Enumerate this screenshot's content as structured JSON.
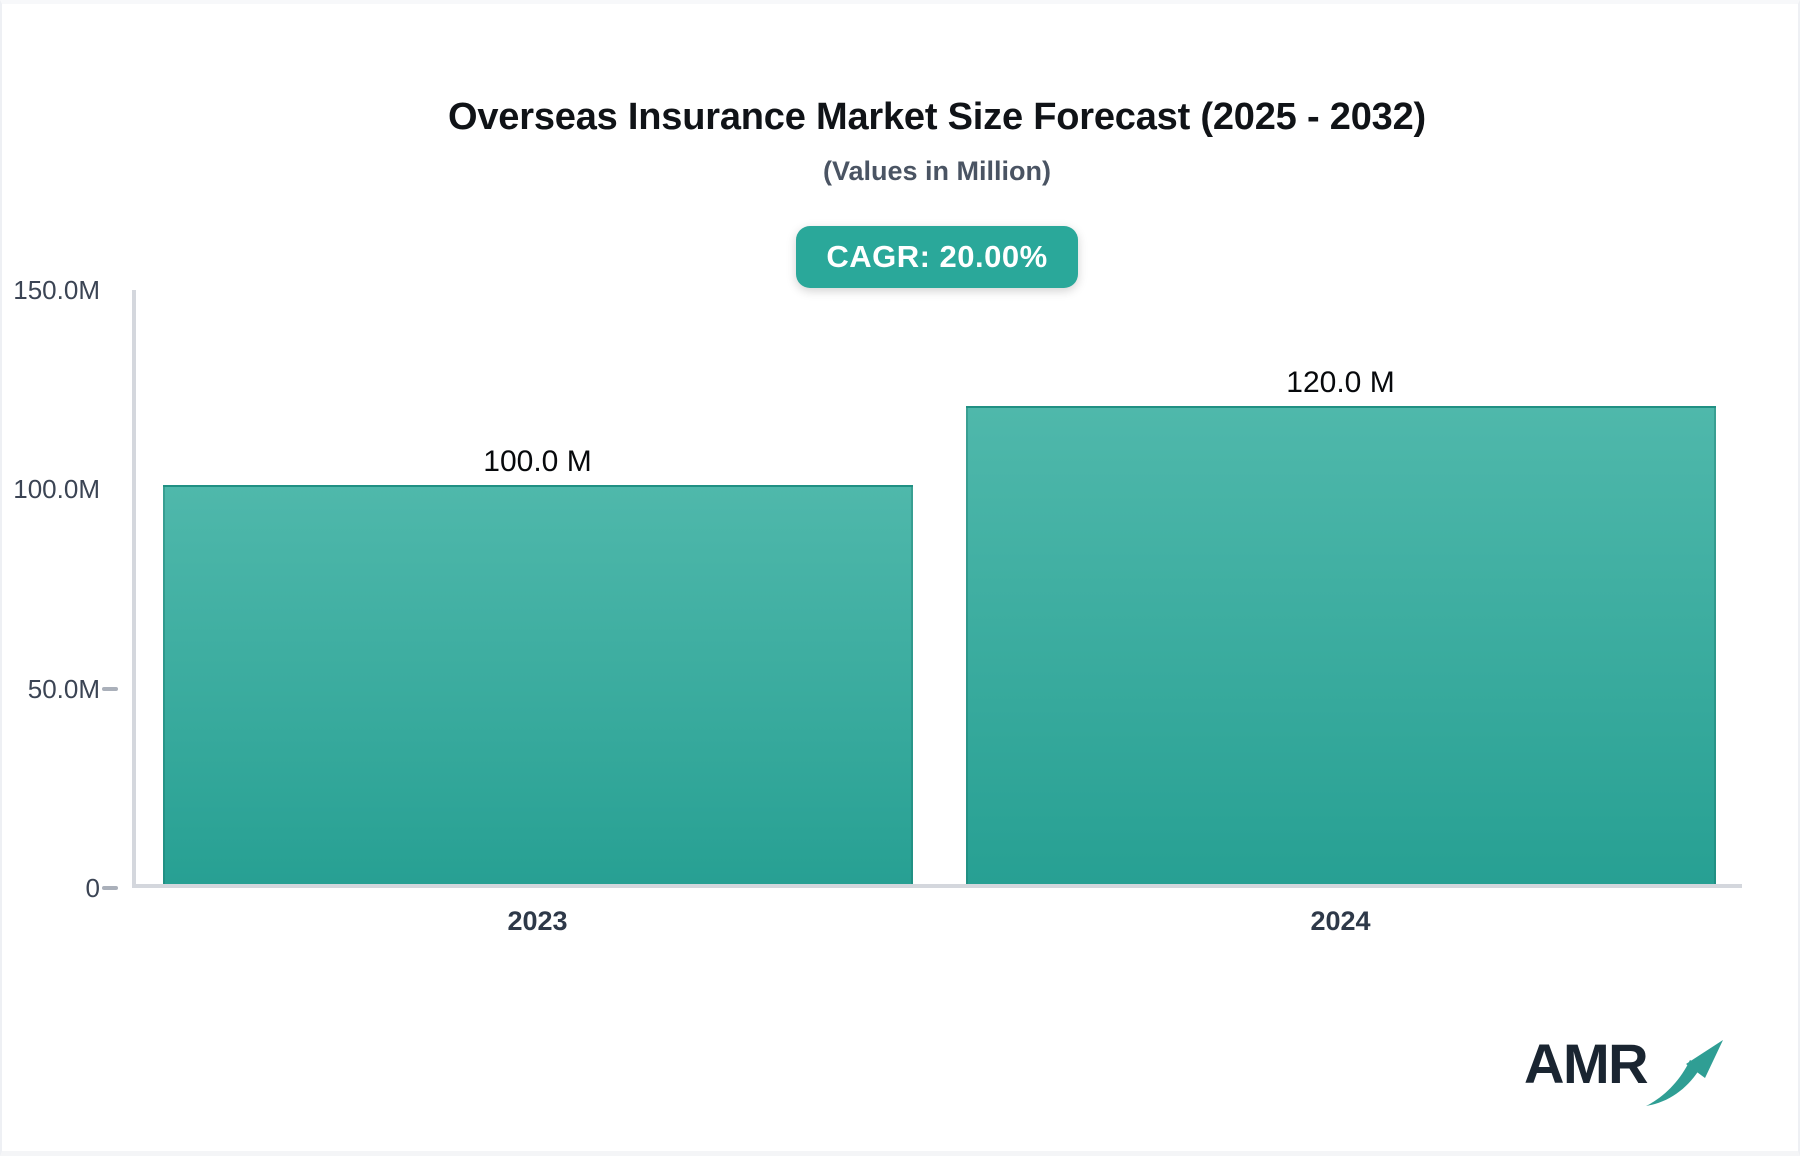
{
  "header": {
    "title": "Overseas Insurance Market Size Forecast (2025 - 2032)",
    "subtitle": "(Values in Million)",
    "cagr_badge": "CAGR: 20.00%"
  },
  "chart_data": {
    "type": "bar",
    "title": "Overseas Insurance Market Size Forecast (2025 - 2032)",
    "subtitle": "(Values in Million)",
    "cagr": "20.00%",
    "categories": [
      "2023",
      "2024"
    ],
    "values": [
      100,
      120
    ],
    "value_labels": [
      "100.0 M",
      "120.0 M"
    ],
    "xlabel": "",
    "ylabel": "",
    "ylim": [
      0,
      150
    ],
    "yticks": [
      {
        "value": 0,
        "label": "0",
        "dash": true
      },
      {
        "value": 50,
        "label": "50.0M",
        "dash": true
      },
      {
        "value": 100,
        "label": "100.0M",
        "dash": false
      },
      {
        "value": 150,
        "label": "150.0M",
        "dash": false
      }
    ],
    "grid": false,
    "legend": null,
    "colors": {
      "bar_gradient_top": "#4fb8ab",
      "bar_gradient_bottom": "#27a093",
      "badge_background": "#2aa89a",
      "axis_line": "#d4d7dd",
      "value_label_text": "#07090c",
      "axis_label_text": "#3b4454"
    }
  },
  "branding": {
    "logo_text": "AMR",
    "logo_color": "#1a2531",
    "arrow_color": "#2f9e94"
  }
}
